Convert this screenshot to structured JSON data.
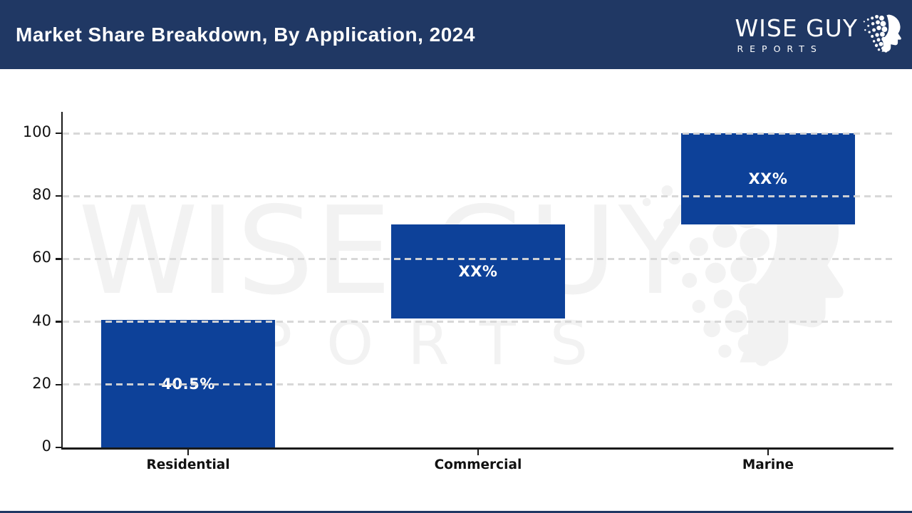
{
  "header": {
    "title": "Market Share Breakdown, By Application, 2024",
    "logo": {
      "line1": "WISE GUY",
      "line2": "REPORTS"
    }
  },
  "watermark": {
    "line1": "WISE GUY",
    "line2": "REPORTS"
  },
  "chart_data": {
    "type": "bar",
    "subtype": "stacked-waterfall",
    "title": "Market Share Breakdown, By Application, 2024",
    "categories": [
      "Residential",
      "Commercial",
      "Marine"
    ],
    "series": [
      {
        "name": "Market Share",
        "segments": [
          {
            "category": "Residential",
            "start": 0,
            "end": 40.5,
            "label": "40.5%"
          },
          {
            "category": "Commercial",
            "start": 41,
            "end": 71,
            "label": "XX%"
          },
          {
            "category": "Marine",
            "start": 71,
            "end": 100,
            "label": "XX%"
          }
        ]
      }
    ],
    "xlabel": "",
    "ylabel": "",
    "ylim": [
      0,
      100
    ],
    "yticks": [
      0,
      20,
      40,
      60,
      80,
      100
    ],
    "grid": "horizontal-dashed",
    "legend": "none",
    "colors": {
      "bar": "#0d4199",
      "bar_label": "#ffffff",
      "axis": "#1a1a1a",
      "gridline": "#d6d6d6",
      "tick_label": "#111111",
      "header_bg": "#203864",
      "watermark": "#f2f2f2"
    }
  }
}
